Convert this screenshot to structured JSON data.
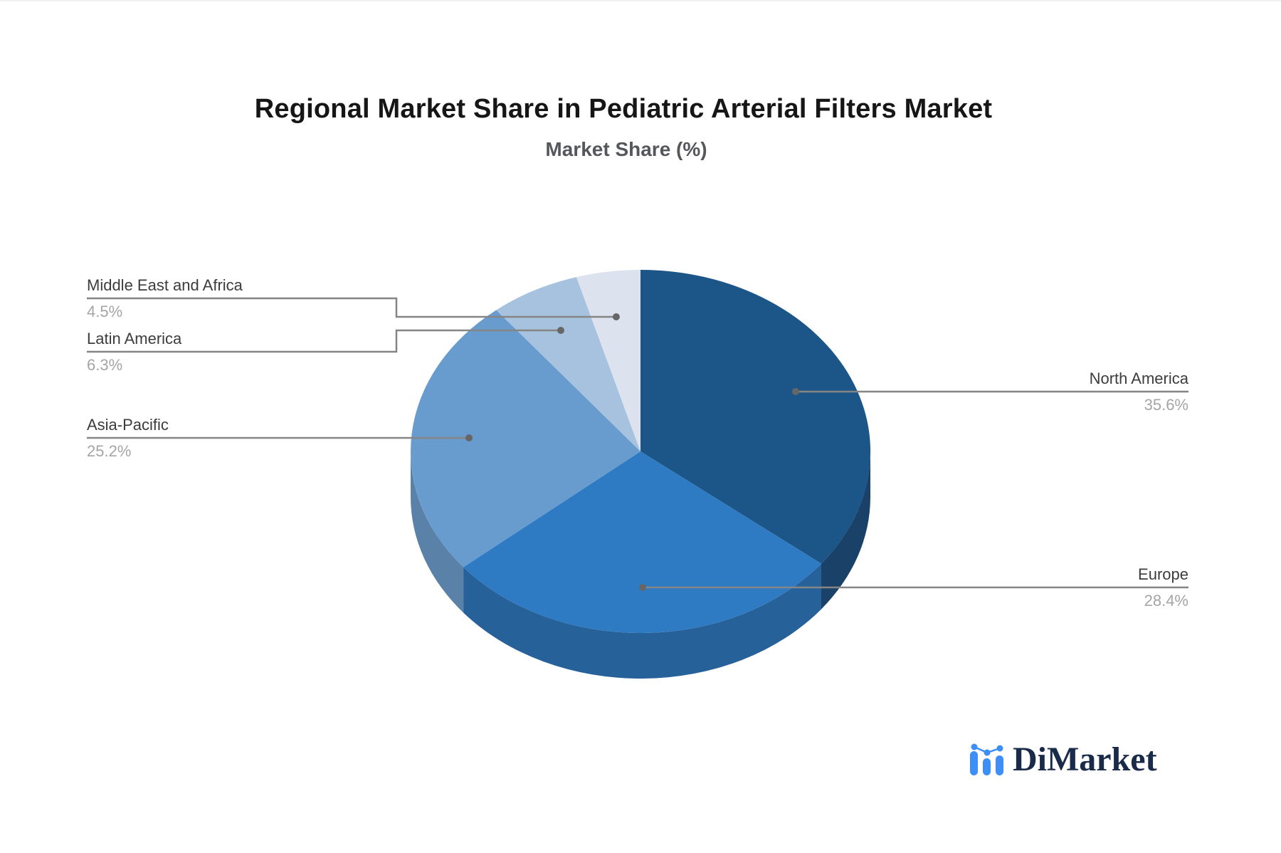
{
  "header": {
    "title": "Regional Market Share in Pediatric Arterial Filters Market",
    "subtitle": "Market Share (%)"
  },
  "watermark": {
    "brand": "DiMarket",
    "icon": "bar-line-chart-icon",
    "icon_color": "#3e8ef7",
    "text_color": "#1a2b49"
  },
  "chart_data": {
    "type": "pie",
    "effect": "3d",
    "title": "Regional Market Share in Pediatric Arterial Filters Market",
    "subtitle": "Market Share (%)",
    "unit": "%",
    "start_angle": "12-o-clock",
    "direction": "clockwise",
    "legend_position": "none",
    "slices": [
      {
        "label": "North America",
        "value": 35.6,
        "pct": "35.6%",
        "color": "#1c5689",
        "side_color": "#1a4168"
      },
      {
        "label": "Europe",
        "value": 28.4,
        "pct": "28.4%",
        "color": "#2e7bc3",
        "side_color": "#26619a"
      },
      {
        "label": "Asia-Pacific",
        "value": 25.2,
        "pct": "25.2%",
        "color": "#689cce",
        "side_color": "#5a82a9"
      },
      {
        "label": "Latin America",
        "value": 6.3,
        "pct": "6.3%",
        "color": "#a7c2df",
        "side_color": "#8ba3bd"
      },
      {
        "label": "Middle East and Africa",
        "value": 4.5,
        "pct": "4.5%",
        "color": "#dce3ee",
        "side_color": "#b7c2d1"
      }
    ],
    "label_name_color": "#3c3c3c",
    "label_value_color": "#a5a5a5",
    "leader_line_color": "#858585",
    "leader_dot_color": "#666666"
  }
}
